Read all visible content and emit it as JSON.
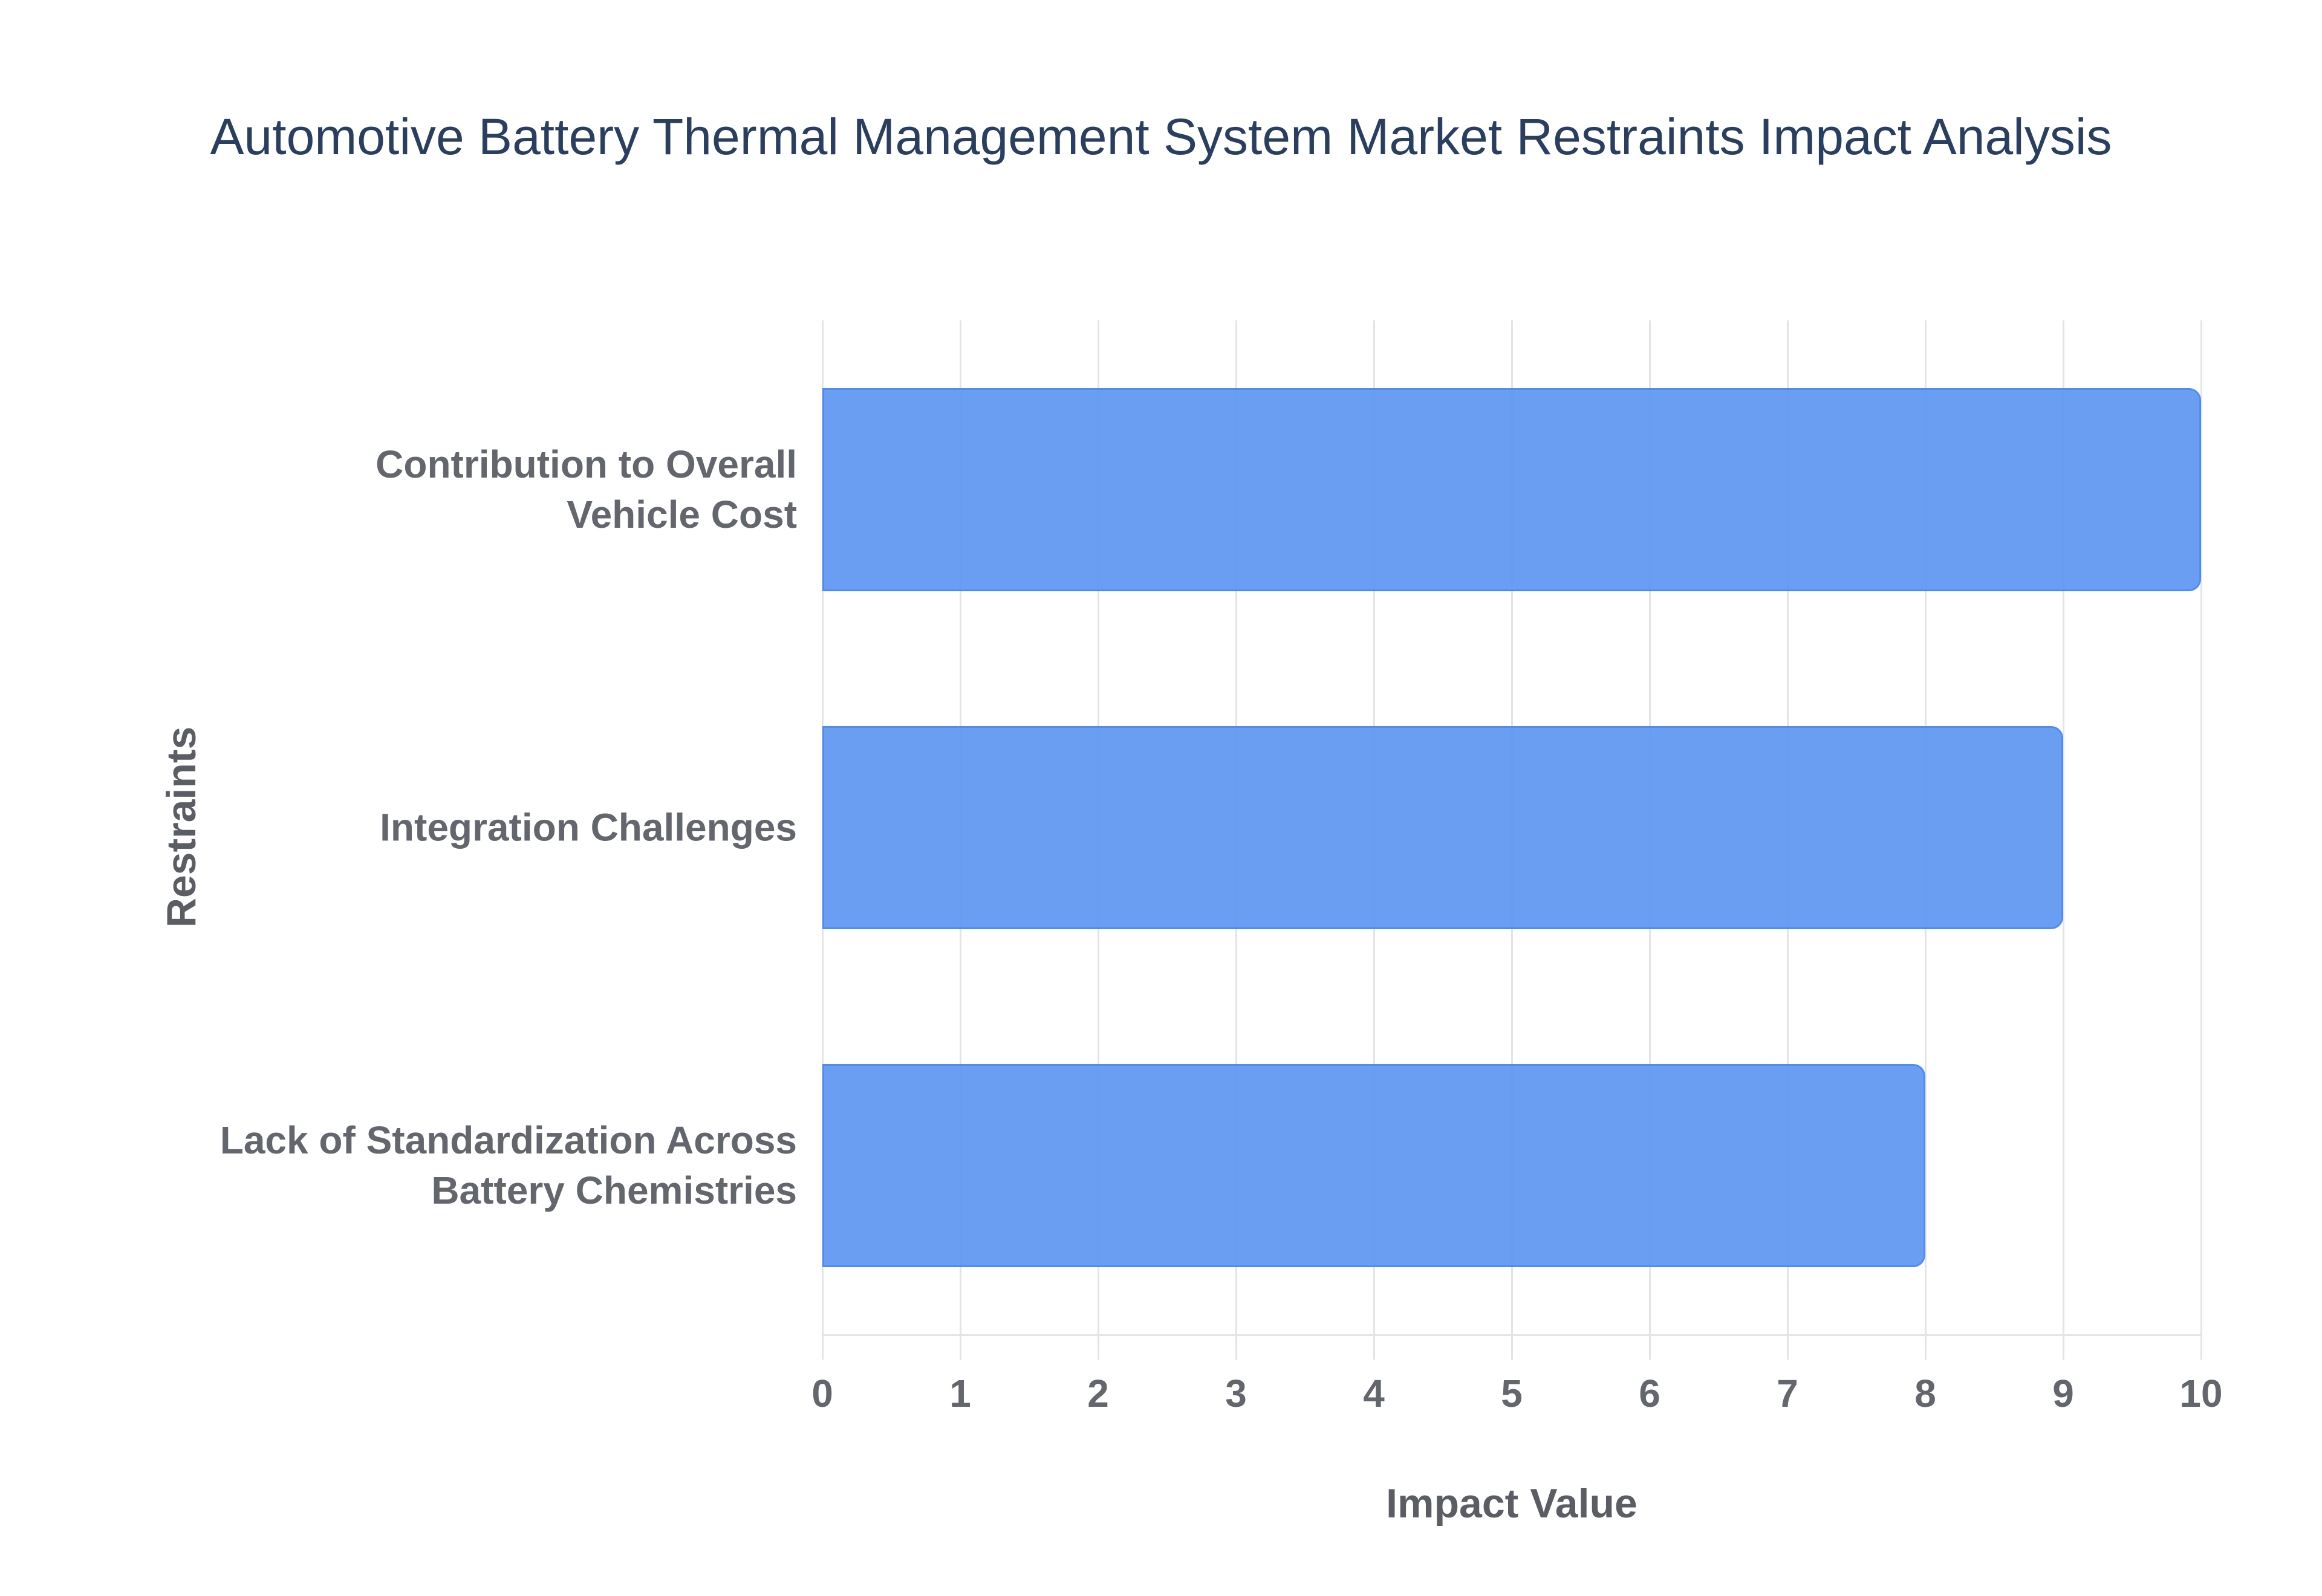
{
  "chart_data": {
    "type": "bar",
    "orientation": "horizontal",
    "title": "Automotive Battery Thermal Management System Market Restraints Impact Analysis",
    "categories": [
      "Contribution to Overall\nVehicle Cost",
      "Integration Challenges",
      "Lack of Standardization Across\nBattery Chemistries"
    ],
    "values": [
      10,
      9,
      8
    ],
    "xlabel": "Impact Value",
    "ylabel": "Restraints",
    "xlim": [
      0,
      10
    ],
    "xticks": [
      0,
      1,
      2,
      3,
      4,
      5,
      6,
      7,
      8,
      9,
      10
    ],
    "grid": true,
    "legend": "none",
    "colors": {
      "bar_fill": "#5E97F3",
      "bar_border": "#4485EE",
      "title_text": "#2A3F5F",
      "tick_text": "#63676D",
      "axis_title_text": "#5A5E64",
      "gridline": "#E2E4E8",
      "background": "#FFFFFF"
    }
  }
}
